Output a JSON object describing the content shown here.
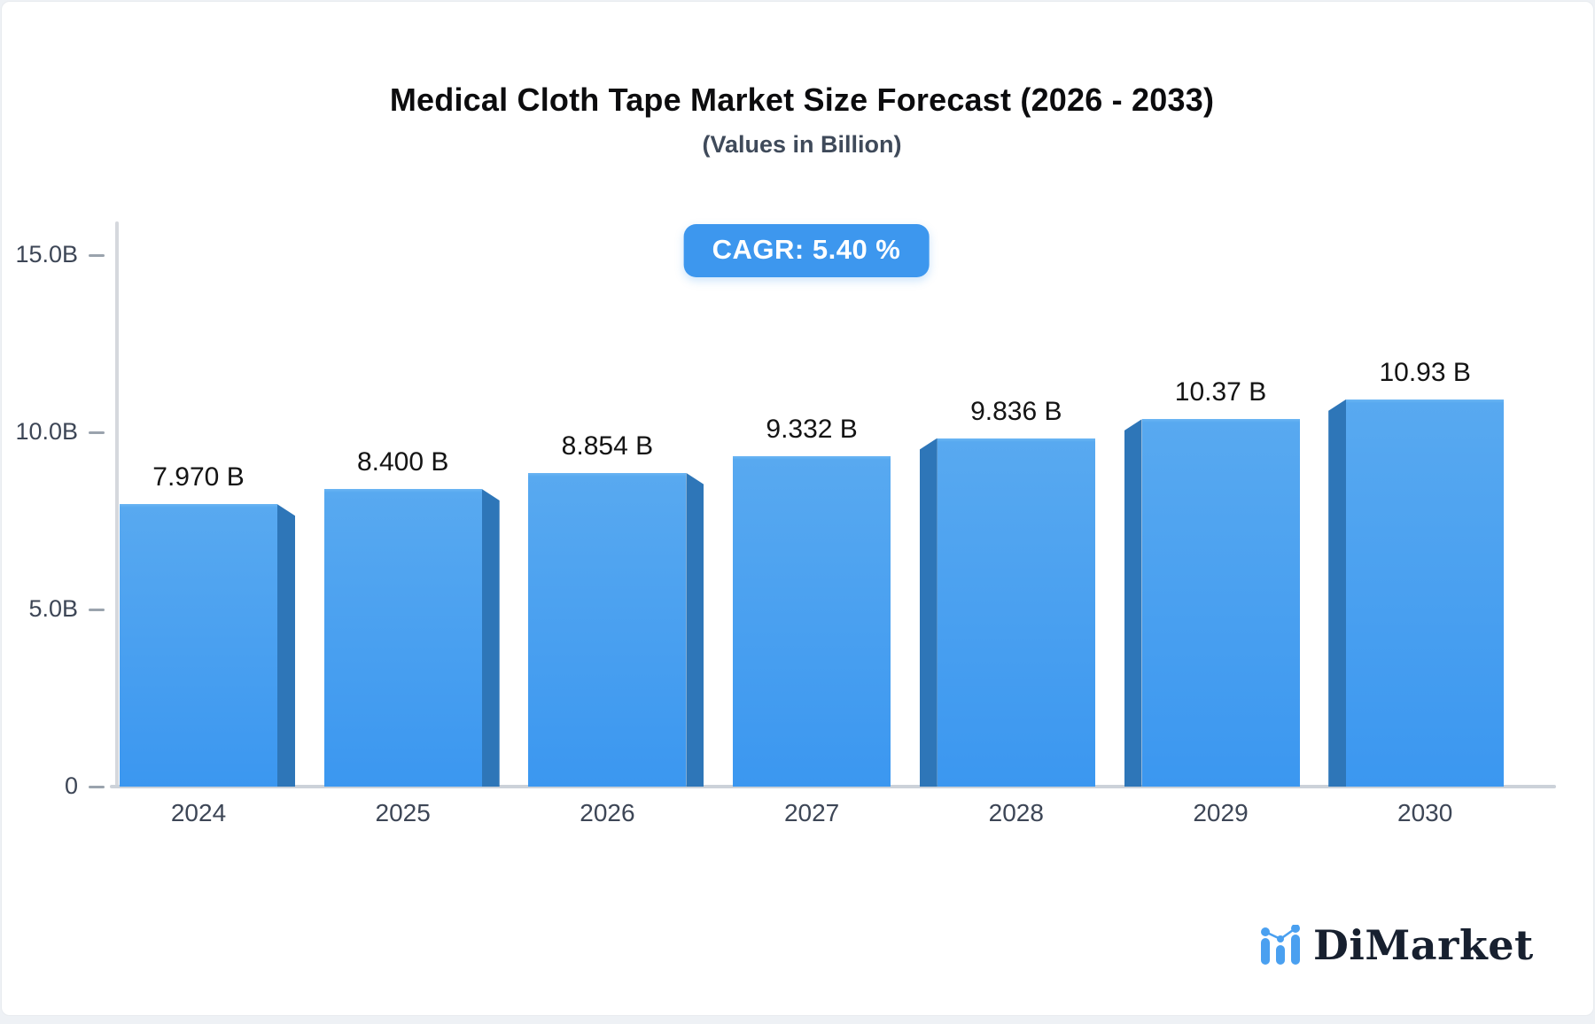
{
  "header": {
    "title": "Medical Cloth Tape Market Size Forecast (2026 - 2033)",
    "subtitle": "(Values in Billion)",
    "cagr_label": "CAGR: 5.40 %"
  },
  "chart_data": {
    "type": "bar",
    "title": "Medical Cloth Tape Market Size Forecast (2026 - 2033)",
    "subtitle": "(Values in Billion)",
    "cagr_percent": 5.4,
    "unit": "Billion",
    "categories": [
      "2024",
      "2025",
      "2026",
      "2027",
      "2028",
      "2029",
      "2030"
    ],
    "values": [
      7.97,
      8.4,
      8.854,
      9.332,
      9.836,
      10.37,
      10.93
    ],
    "value_labels": [
      "7.970 B",
      "8.400 B",
      "8.854 B",
      "9.332 B",
      "9.836 B",
      "10.37 B",
      "10.93 B"
    ],
    "y_ticks": [
      {
        "label": "15.0B",
        "value": 15
      },
      {
        "label": "10.0B",
        "value": 10
      },
      {
        "label": "5.0B",
        "value": 5
      },
      {
        "label": "0",
        "value": 0
      }
    ],
    "ylim": [
      0,
      15
    ],
    "xlabel": "",
    "ylabel": "",
    "grid": false,
    "legend": false,
    "colors": {
      "bar_top": "#58a9f0",
      "bar_bottom": "#3b97f0",
      "bar_side": "#2e76b8",
      "badge_bg": "#3d97ee",
      "axis_text": "#3d4656",
      "axis_line": "#d5d8dd"
    }
  },
  "footer": {
    "brand": "DiMarket"
  }
}
